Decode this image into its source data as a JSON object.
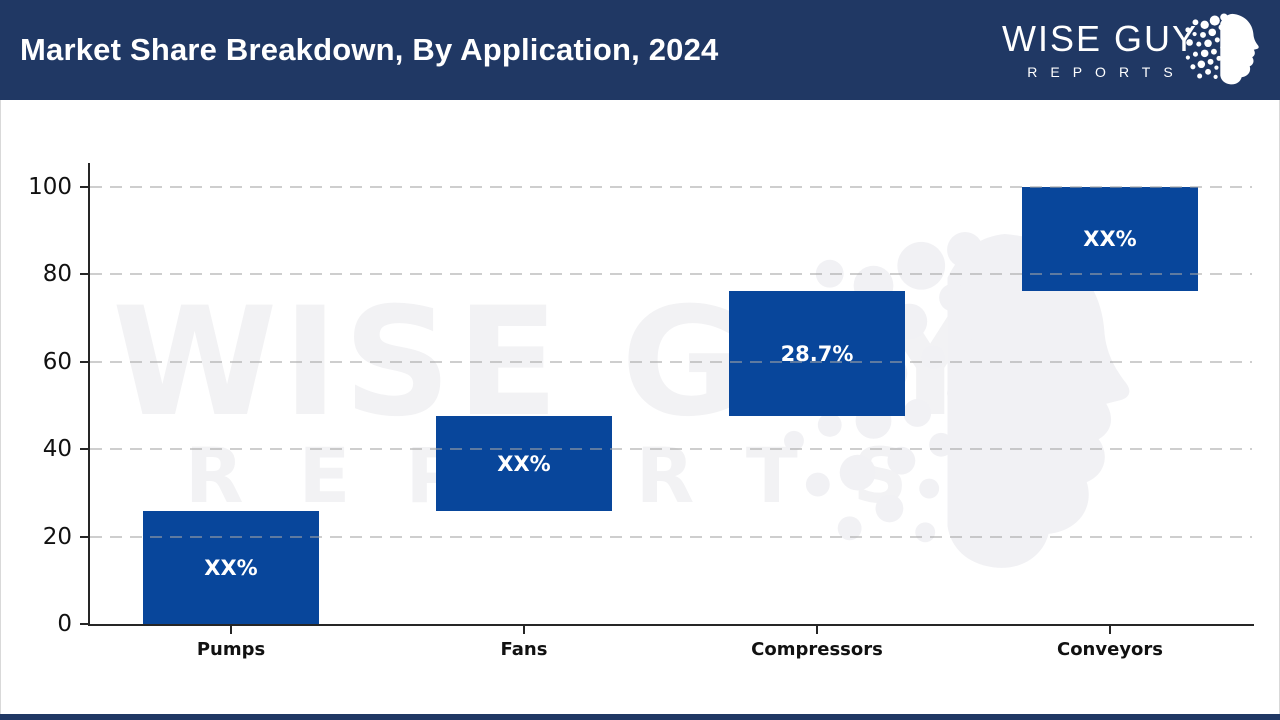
{
  "header": {
    "title": "Market Share Breakdown, By Application, 2024",
    "logo": {
      "line1": "WISE GUY",
      "line2": "REPORTS"
    }
  },
  "watermark": {
    "line1": "WISE GUY",
    "line2": "REPORTS"
  },
  "chart_data": {
    "type": "bar",
    "subtype": "waterfall-floating-bars",
    "title": "Market Share Breakdown, By Application, 2024",
    "categories": [
      "Pumps",
      "Fans",
      "Compressors",
      "Conveyors"
    ],
    "segments": [
      {
        "category": "Pumps",
        "start": 0,
        "end": 25.8,
        "height": 25.8,
        "label": "XX%"
      },
      {
        "category": "Fans",
        "start": 25.8,
        "end": 47.5,
        "height": 21.7,
        "label": "XX%"
      },
      {
        "category": "Compressors",
        "start": 47.5,
        "end": 76.2,
        "height": 28.7,
        "label": "28.7%"
      },
      {
        "category": "Conveyors",
        "start": 76.2,
        "end": 100,
        "height": 23.8,
        "label": "XX%"
      }
    ],
    "yticks": [
      0,
      20,
      40,
      60,
      80,
      100
    ],
    "ylim": [
      0,
      105
    ],
    "xlabel": "",
    "ylabel": "",
    "grid": "horizontal-dashed",
    "legend": "none",
    "bar_color": "#08469B",
    "bar_label_color": "#ffffff"
  },
  "colors": {
    "header_navy": "#203864",
    "bar_blue": "#08469B",
    "axis": "#262626",
    "grid_gray": "#d9d9d9",
    "watermark_gray": "#f2f2f4"
  }
}
